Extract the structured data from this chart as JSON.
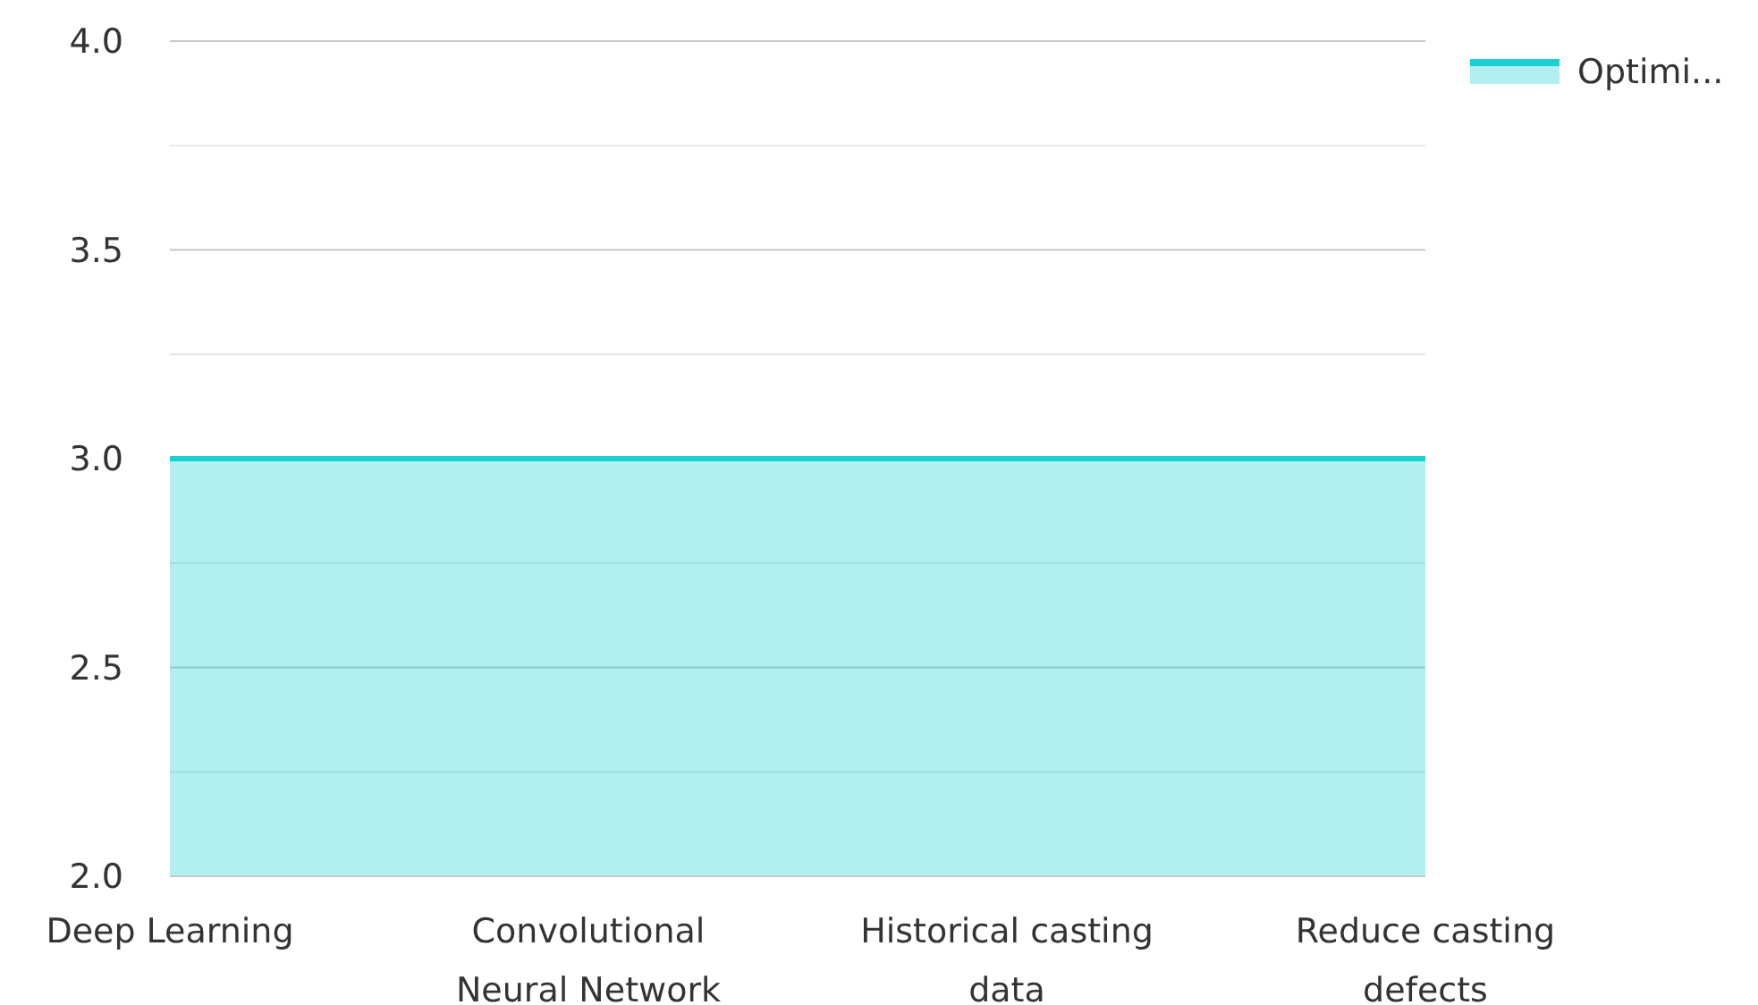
{
  "chart_data": {
    "type": "area",
    "categories": [
      "Deep Learning",
      "Convolutional Neural Network",
      "Historical casting data",
      "Reduce casting defects"
    ],
    "series": [
      {
        "name": "Optimi...",
        "color": "#1ccfd3",
        "values": [
          3,
          3,
          3,
          3
        ]
      }
    ],
    "ylim": [
      2,
      4
    ],
    "yticks": [
      {
        "value": 2,
        "label": "2.0"
      },
      {
        "value": 2.25,
        "label": null
      },
      {
        "value": 2.5,
        "label": "2.5"
      },
      {
        "value": 2.75,
        "label": null
      },
      {
        "value": 3,
        "label": "3.0"
      },
      {
        "value": 3.25,
        "label": null
      },
      {
        "value": 3.5,
        "label": "3.5"
      },
      {
        "value": 3.75,
        "label": null
      },
      {
        "value": 4,
        "label": "4.0"
      }
    ],
    "grid": "y",
    "legend": "top right"
  }
}
